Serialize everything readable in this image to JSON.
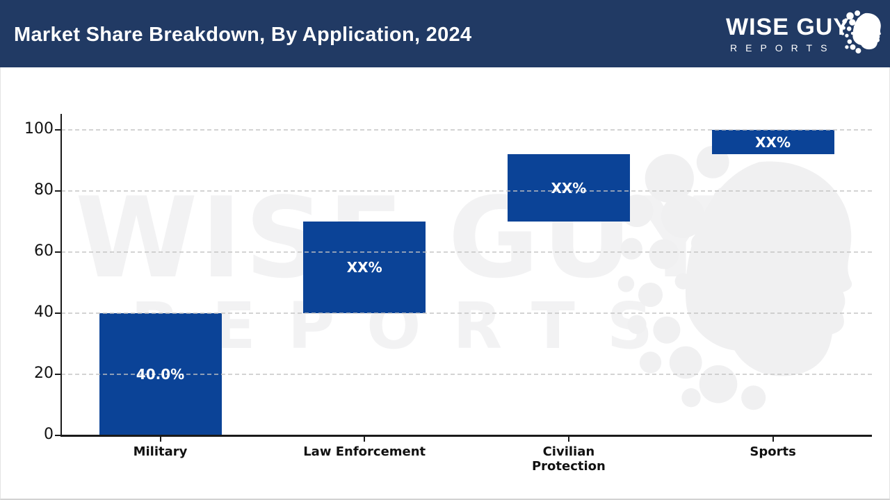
{
  "header": {
    "title": "Market Share Breakdown, By Application, 2024",
    "logo": {
      "primary": "WISE GUY",
      "secondary": "REPORTS"
    }
  },
  "watermark": {
    "primary": "WISE GUY",
    "secondary": "REPORTS"
  },
  "colors": {
    "header_bg": "#213a64",
    "bar": "#0b4397",
    "bar_label": "#ffffff",
    "grid": "#d9d9d9",
    "axis": "#1a1a1a",
    "watermark": "#f2f2f3"
  },
  "chart_data": {
    "type": "bar",
    "subtype": "waterfall",
    "title": "Market Share Breakdown, By Application, 2024",
    "categories": [
      "Military",
      "Law Enforcement",
      "Civilian\nProtection",
      "Sports"
    ],
    "series": [
      {
        "name": "Market Share",
        "segments": [
          {
            "category": "Military",
            "start": 0,
            "end": 40,
            "value_label": "40.0%"
          },
          {
            "category": "Law Enforcement",
            "start": 40,
            "end": 70,
            "value_label": "XX%"
          },
          {
            "category": "Civilian Protection",
            "start": 70,
            "end": 92,
            "value_label": "XX%"
          },
          {
            "category": "Sports",
            "start": 92,
            "end": 100,
            "value_label": "XX%"
          }
        ]
      }
    ],
    "xlabel": "",
    "ylabel": "",
    "ylim": [
      0,
      100
    ],
    "yticks": [
      0,
      20,
      40,
      60,
      80,
      100
    ],
    "grid": {
      "axis": "y",
      "style": "dashed"
    },
    "legend": "none"
  }
}
